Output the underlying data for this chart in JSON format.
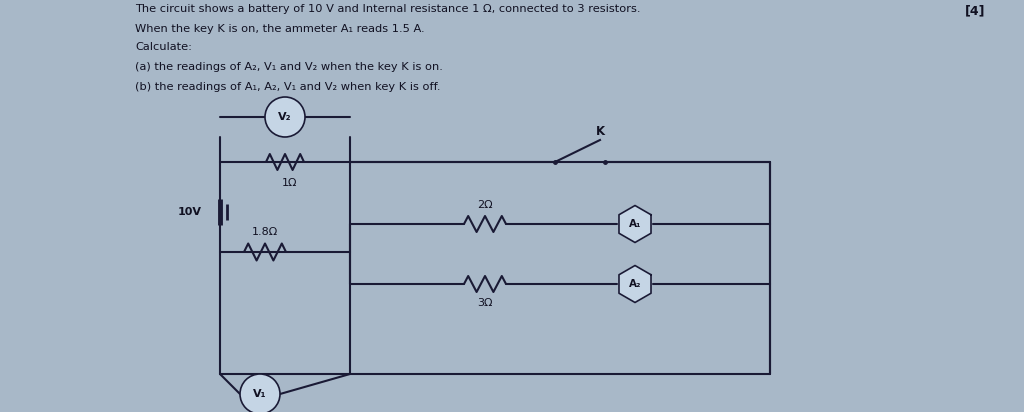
{
  "bg_color": "#a8b8c8",
  "wire_color": "#1a1a35",
  "text_color": "#111122",
  "component_bg": "#c5d5e5",
  "title_lines": [
    "The circuit shows a battery of 10 V and Internal resistance 1 Ω, connected to 3 resistors.",
    "When the key K is on, the ammeter A₁ reads 1.5 A.",
    "Calculate:",
    "(a) the readings of A₂, V₁ and V₂ when the key K is on.",
    "(b) the readings of A₁, A₂, V₁ and V₂ when key K is off."
  ],
  "mark": "[4]",
  "battery_label": "10V",
  "int_r_label": "1Ω",
  "r1_label": "1.8Ω",
  "r2_label": "2Ω",
  "r3_label": "3Ω",
  "key_label": "K",
  "v1_label": "V₁",
  "v2_label": "V₂",
  "a1_label": "A₁",
  "a2_label": "A₂",
  "OLx": 2.2,
  "ORx": 7.7,
  "OTy": 2.5,
  "OBy": 0.38,
  "MidY": 1.6,
  "InnerRx": 3.5,
  "V2x": 2.85,
  "V2y": 2.95,
  "V1x": 2.6,
  "V1y": 0.18,
  "BatX": 2.2,
  "BatY": 2.0,
  "IntRx": 2.85,
  "R18x": 2.65,
  "R18y": 1.6,
  "par_jL": 3.5,
  "R2y": 1.88,
  "R3y": 1.28,
  "R2cx": 4.85,
  "R3cx": 4.85,
  "A1x": 6.35,
  "A2x": 6.35,
  "Kx1": 5.55,
  "Kx2": 6.05,
  "Ky": 2.5,
  "lw": 1.5
}
